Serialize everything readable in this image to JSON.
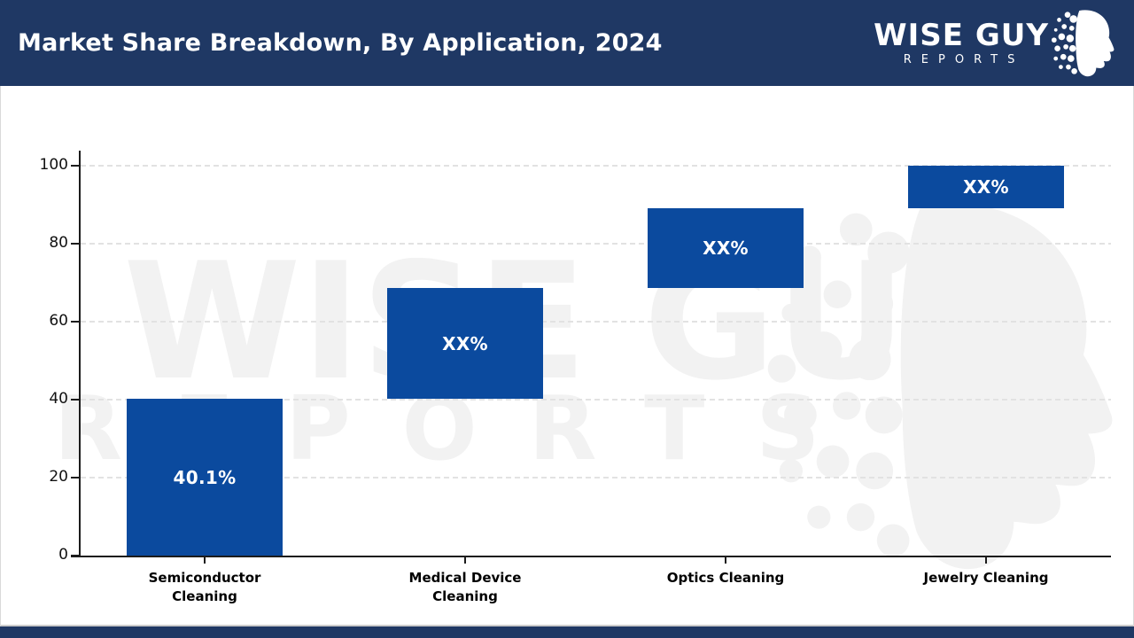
{
  "header": {
    "title": "Market Share Breakdown, By Application, 2024",
    "logo": {
      "primary": "WISE GUY",
      "secondary": "REPORTS"
    }
  },
  "watermark": {
    "line1": "WISE GUY",
    "line2": "REPORTS"
  },
  "chart_data": {
    "type": "bar",
    "subtype": "waterfall",
    "title": "Market Share Breakdown, By Application, 2024",
    "categories": [
      "Semiconductor Cleaning",
      "Medical Device Cleaning",
      "Optics Cleaning",
      "Jewelry Cleaning"
    ],
    "series": [
      {
        "name": "Market Share %",
        "segments": [
          {
            "category": "Semiconductor Cleaning",
            "start": 0,
            "end": 40.1,
            "label": "40.1%"
          },
          {
            "category": "Medical Device Cleaning",
            "start": 40.1,
            "end": 68.6,
            "label": "XX%"
          },
          {
            "category": "Optics Cleaning",
            "start": 68.6,
            "end": 89.0,
            "label": "XX%"
          },
          {
            "category": "Jewelry Cleaning",
            "start": 89.0,
            "end": 99.9,
            "label": "XX%"
          }
        ]
      }
    ],
    "xlabel": "",
    "ylabel": "",
    "ylim": [
      0,
      100
    ],
    "yticks": [
      "0",
      "20",
      "40",
      "60",
      "80",
      "100"
    ],
    "grid": "horizontal-dashed",
    "legend": "none"
  },
  "colors": {
    "header_bg": "#1f3864",
    "bar": "#0b4a9e",
    "bar_label": "#ffffff",
    "axis": "#1c1c1c",
    "grid": "#e2e2e2",
    "watermark": "#f2f2f2",
    "footer_bg": "#1f3864"
  }
}
